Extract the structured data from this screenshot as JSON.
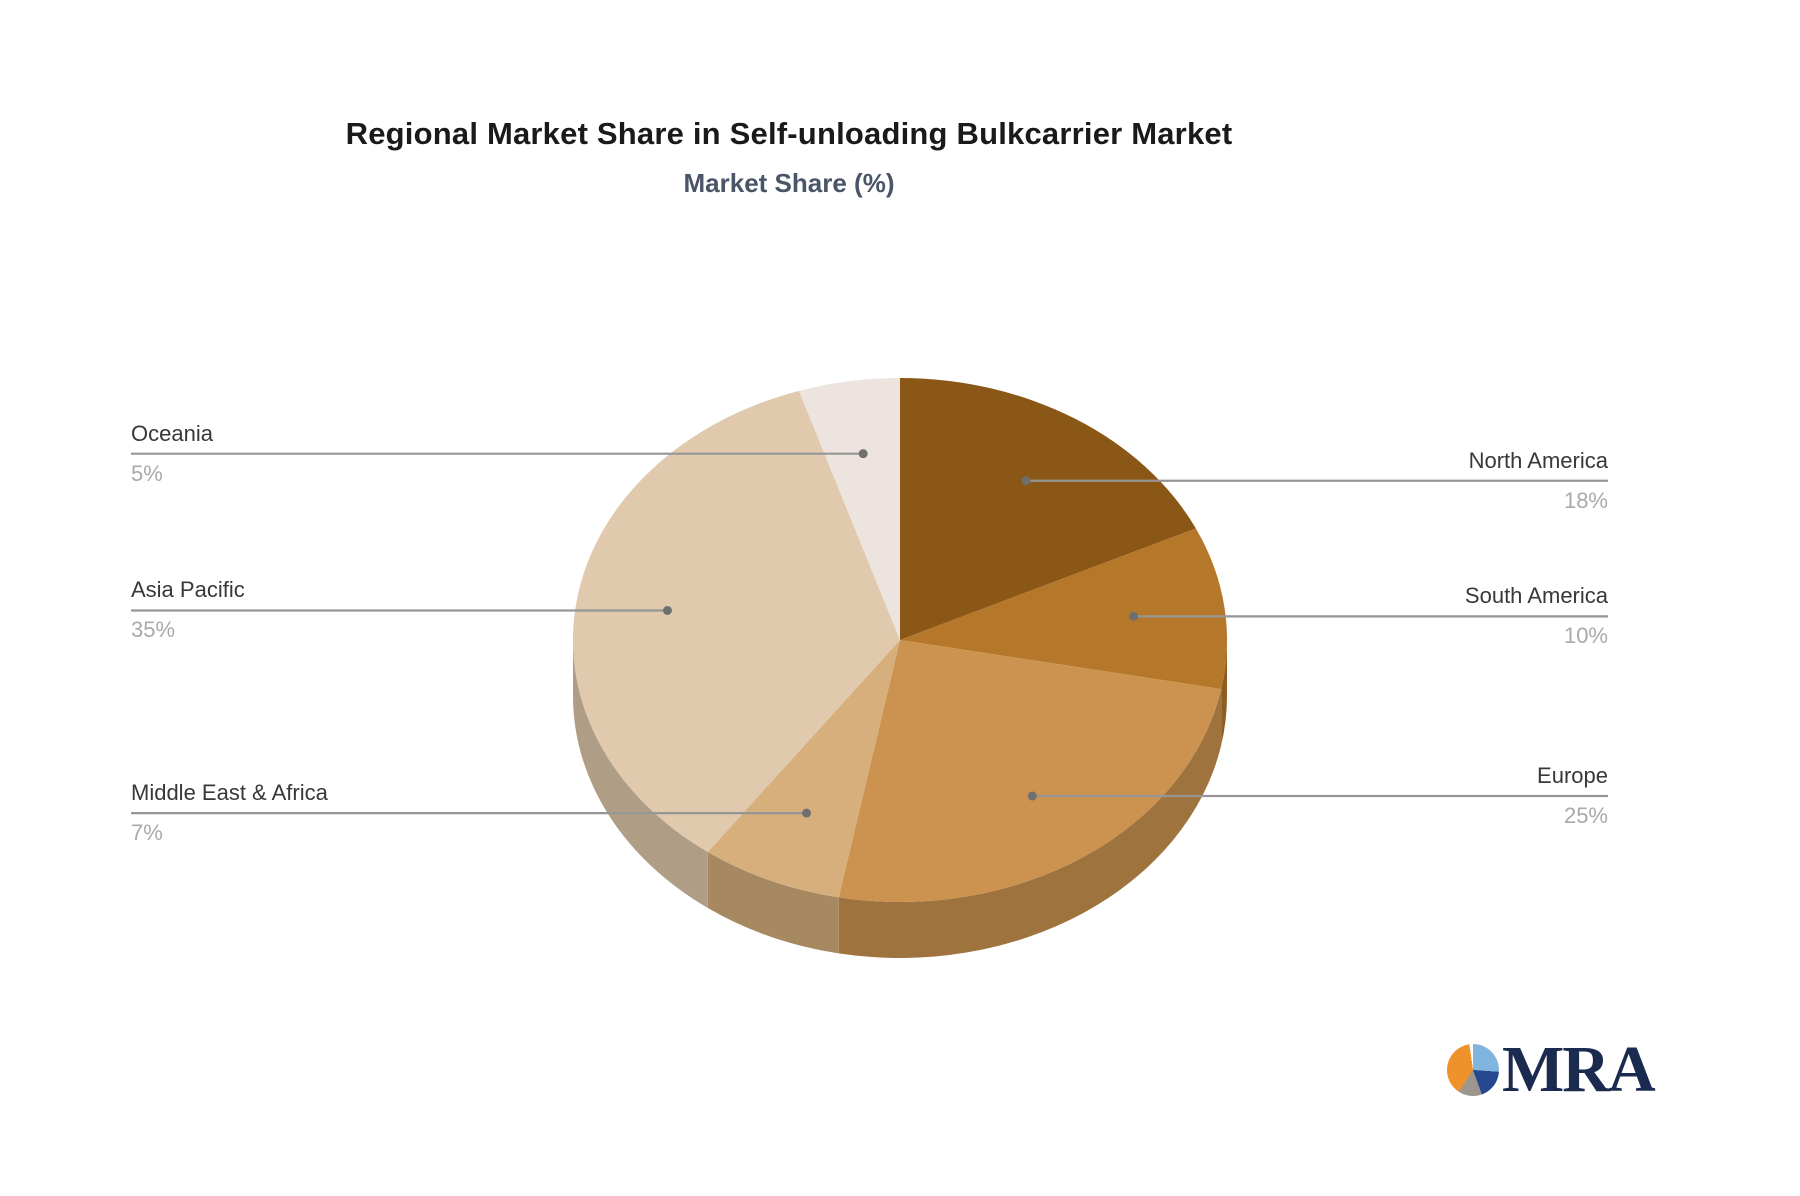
{
  "title": "Regional Market Share in Self-unloading Bulkcarrier Market",
  "subtitle": "Market Share (%)",
  "chart_data": {
    "type": "pie",
    "title": "Regional Market Share in Self-unloading Bulkcarrier Market",
    "subtitle": "Market Share (%)",
    "unit": "%",
    "style": "3d-pie",
    "start_angle_deg": 0,
    "legend_position": "callout-labels",
    "series": [
      {
        "name": "North America",
        "value": 18,
        "pct_label": "18%",
        "color": "#8B5716",
        "side": "right"
      },
      {
        "name": "South America",
        "value": 10,
        "pct_label": "10%",
        "color": "#B5772A",
        "side": "right"
      },
      {
        "name": "Europe",
        "value": 25,
        "pct_label": "25%",
        "color": "#CC9350",
        "side": "right"
      },
      {
        "name": "Middle East & Africa",
        "value": 7,
        "pct_label": "7%",
        "color": "#D6AF7C",
        "side": "left"
      },
      {
        "name": "Asia Pacific",
        "value": 35,
        "pct_label": "35%",
        "color": "#E0C9AC",
        "side": "left"
      },
      {
        "name": "Oceania",
        "value": 5,
        "pct_label": "5%",
        "color": "#EDE4DF",
        "side": "left"
      }
    ],
    "leader_line_color": "#969696",
    "leader_dot_color": "#6f6f6f",
    "label_name_color": "#383838",
    "label_pct_color": "#a9a9a9"
  },
  "logo": {
    "text": "MRA",
    "text_color": "#1b2a4f",
    "icon_colors": {
      "orange": "#F0922B",
      "light_blue": "#7FB5DF",
      "dark_blue": "#27488F",
      "gray": "#9D968E"
    }
  }
}
